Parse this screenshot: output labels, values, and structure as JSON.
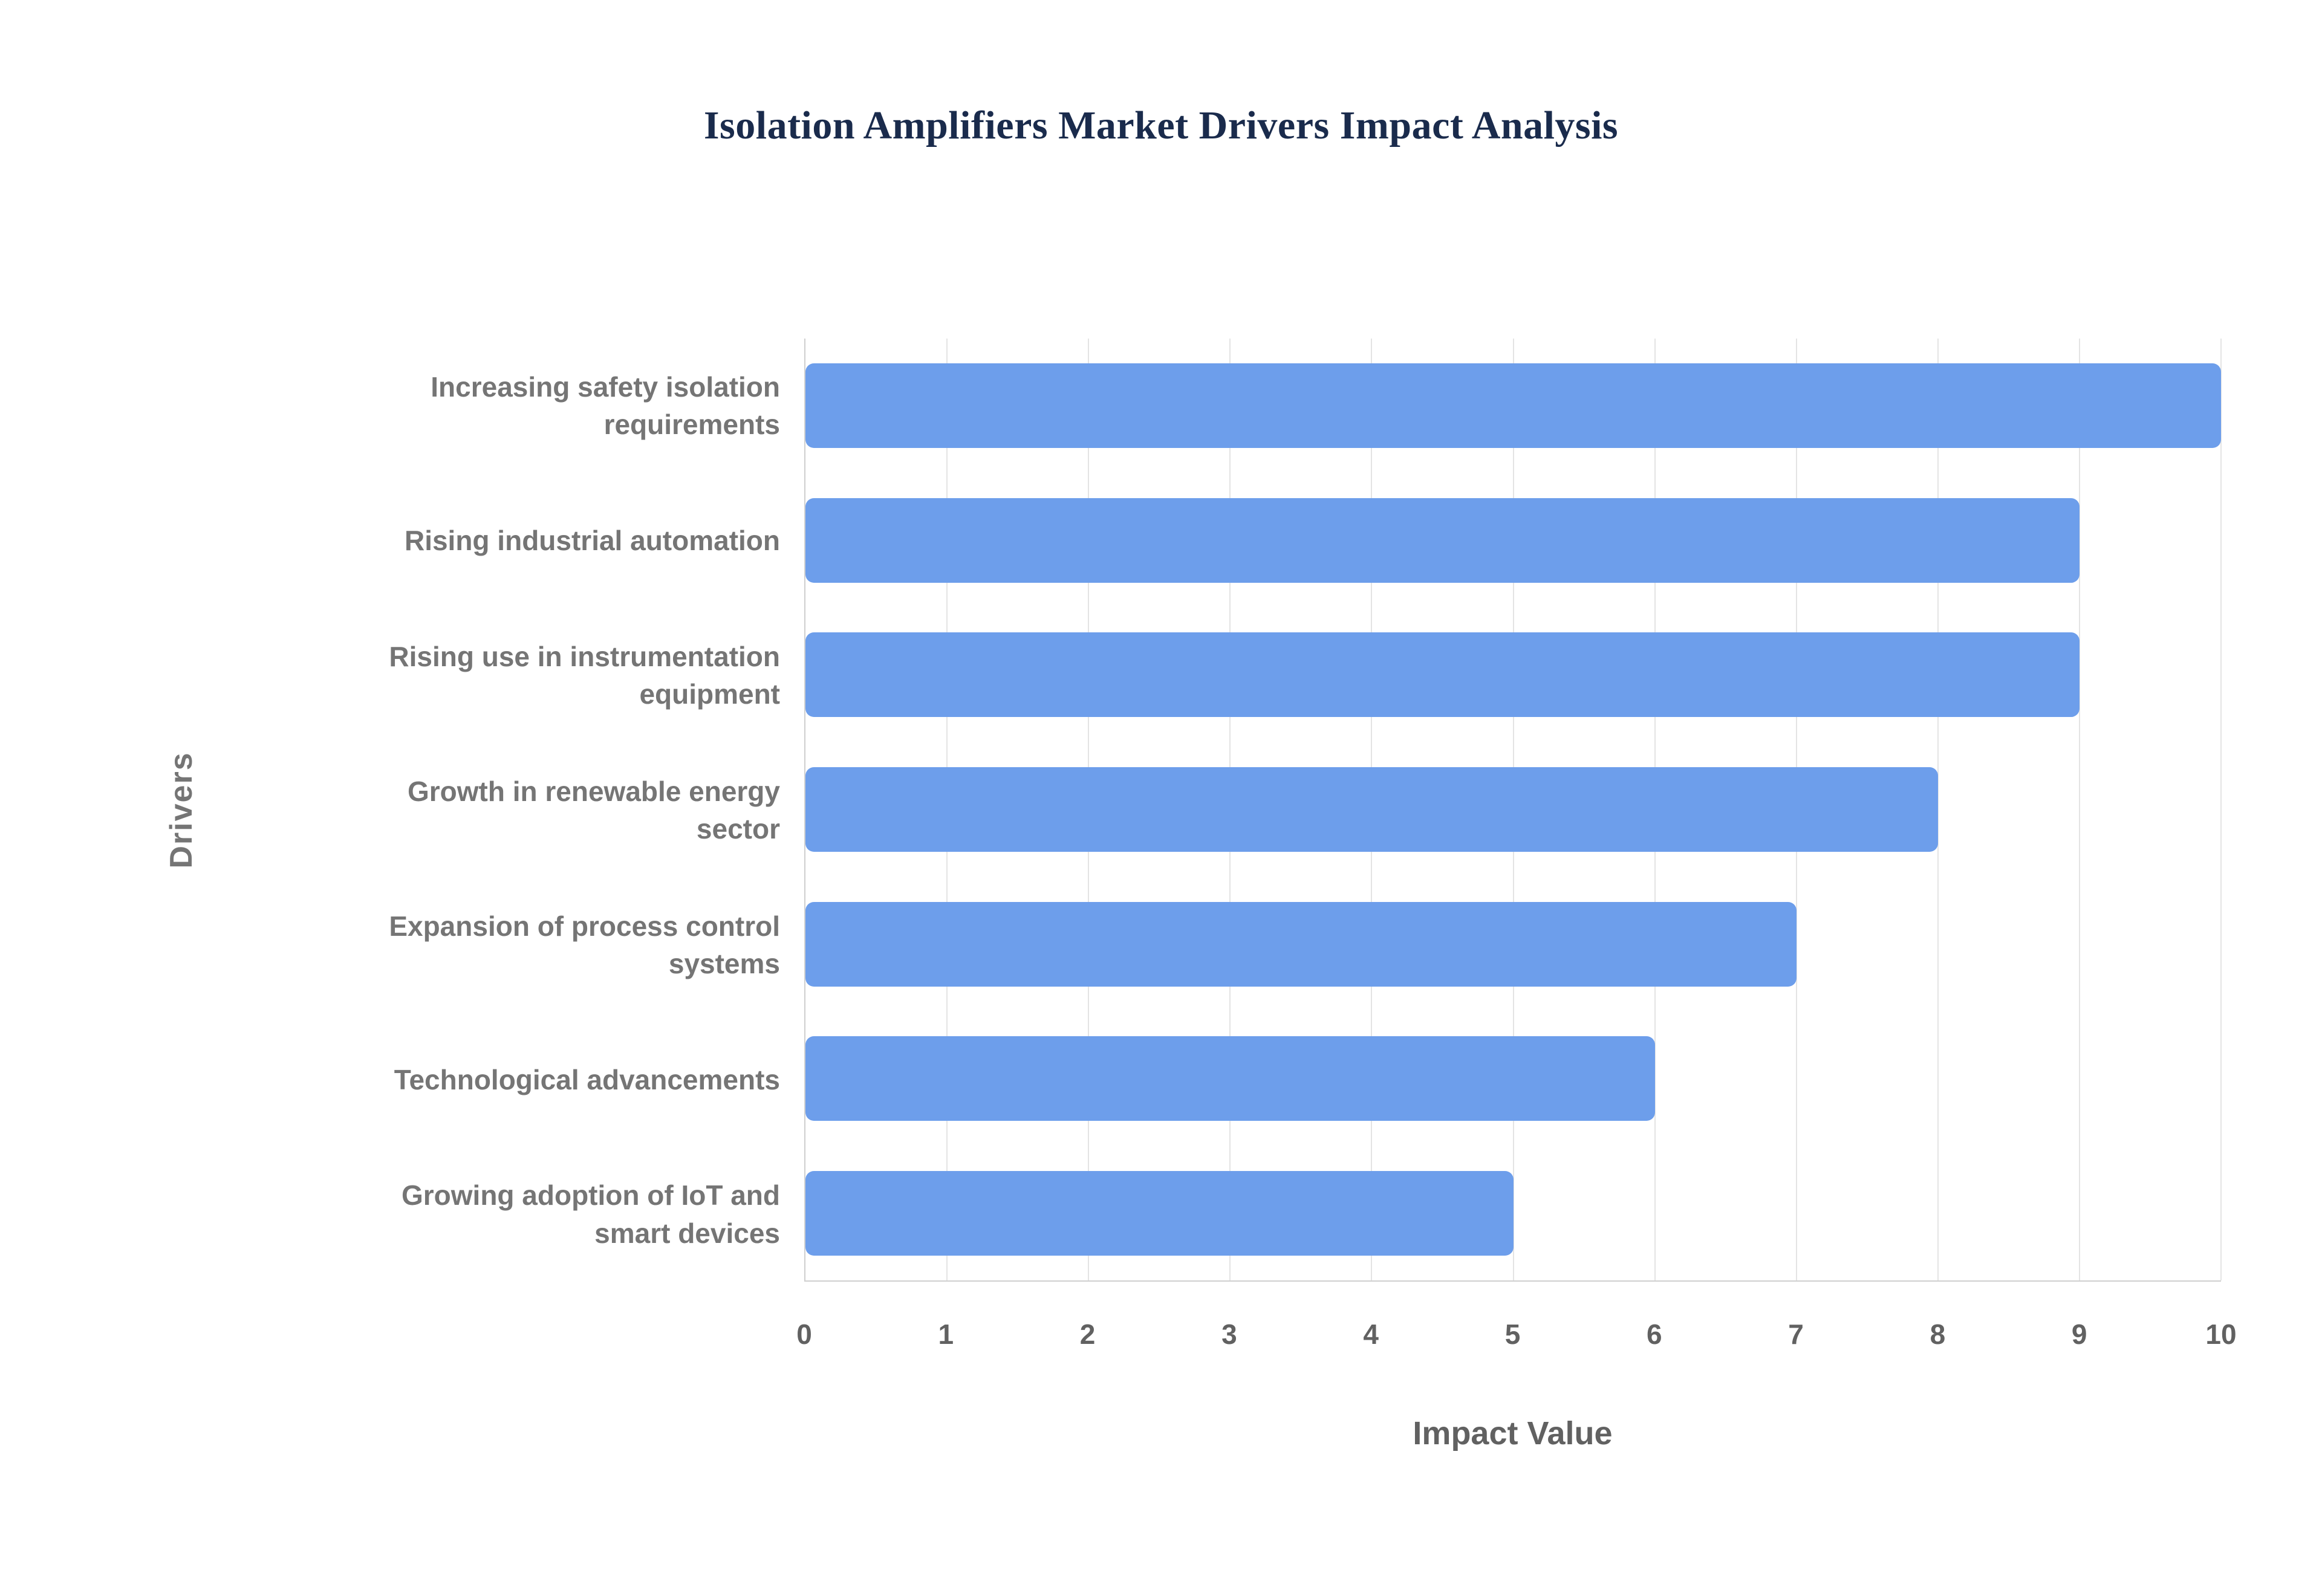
{
  "chart_data": {
    "type": "bar",
    "orientation": "horizontal",
    "title": "Isolation Amplifiers Market Drivers Impact Analysis",
    "categories": [
      "Increasing safety isolation requirements",
      "Rising industrial automation",
      "Rising use in instrumentation equipment",
      "Growth in renewable energy sector",
      "Expansion of process control systems",
      "Technological advancements",
      "Growing adoption of IoT and smart devices"
    ],
    "values": [
      10,
      9,
      9,
      8,
      7,
      6,
      5
    ],
    "xlabel": "Impact Value",
    "ylabel": "Drivers",
    "xlim": [
      0,
      10
    ],
    "xticks": [
      0,
      1,
      2,
      3,
      4,
      5,
      6,
      7,
      8,
      9,
      10
    ],
    "grid": "vertical",
    "legend": "none",
    "colors": {
      "bar": "#6d9eeb",
      "title": "#1a2b4c",
      "axis_text": "#757575",
      "tick_text": "#616161",
      "gridline": "#e4e4e4",
      "axis_line": "#cfcfcf",
      "background": "#ffffff"
    }
  }
}
